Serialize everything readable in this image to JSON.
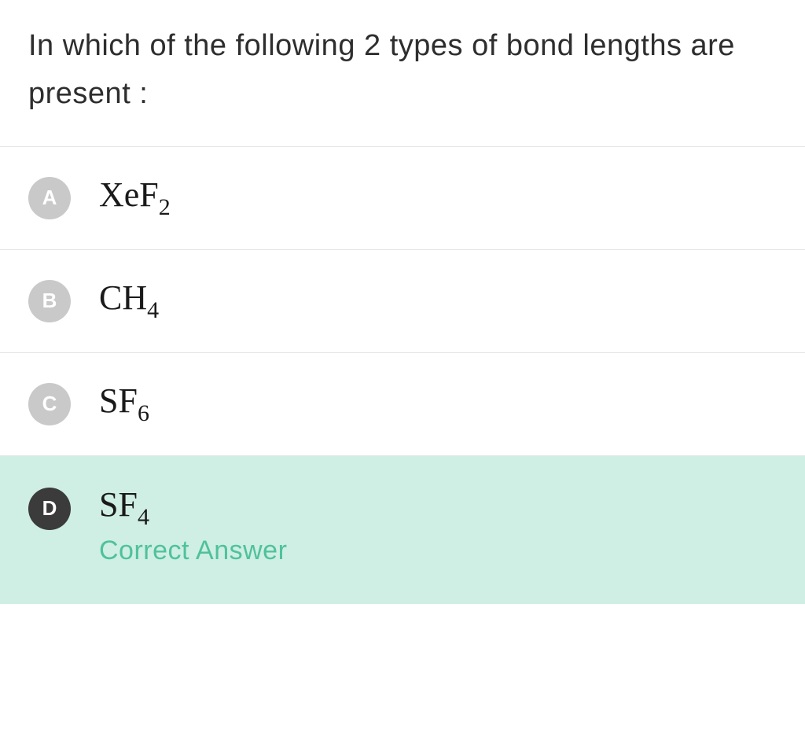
{
  "question": {
    "text": "In which of the following 2 types of bond lengths are present :"
  },
  "options": [
    {
      "letter": "A",
      "base": "XeF",
      "sub": "2",
      "correct": false
    },
    {
      "letter": "B",
      "base": "CH",
      "sub": "4",
      "correct": false
    },
    {
      "letter": "C",
      "base": "SF",
      "sub": "6",
      "correct": false
    },
    {
      "letter": "D",
      "base": "SF",
      "sub": "4",
      "correct": true
    }
  ],
  "correct_label": "Correct Answer",
  "colors": {
    "badge_default": "#c9c9c9",
    "badge_selected": "#3b3b3b",
    "correct_bg": "#cfeee4",
    "correct_text": "#4fc29a",
    "divider": "#e4e4e4",
    "question_text": "#2e2e2e",
    "formula_text": "#1a1a1a"
  }
}
